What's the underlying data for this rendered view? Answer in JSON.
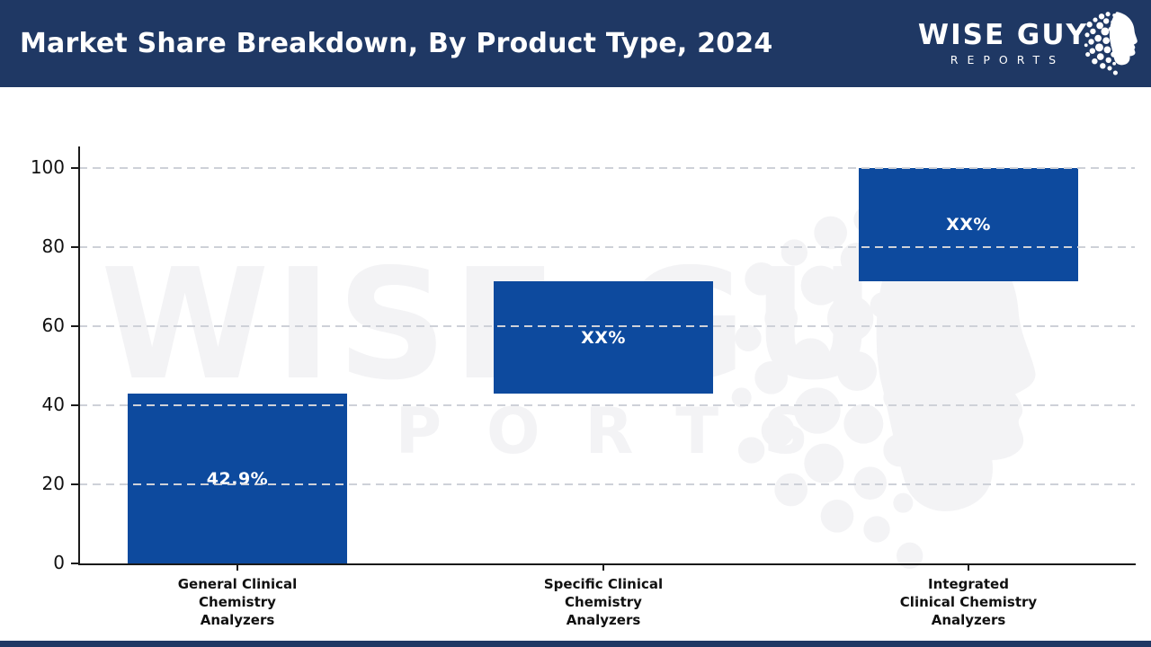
{
  "header": {
    "title": "Market Share Breakdown, By Product Type, 2024",
    "logo": {
      "line1": "WISE GUY",
      "line2": "REPORTS"
    }
  },
  "watermark": {
    "line1": "WISE GUY",
    "line2": "REPORTS"
  },
  "colors": {
    "header_bg": "#1f3864",
    "bar": "#0d4a9e",
    "grid": "#ced1d8",
    "axis": "#1a1a1a",
    "watermark": "#f3f3f5",
    "title_text": "#ffffff",
    "bar_label_text": "#ffffff"
  },
  "chart_data": {
    "type": "bar",
    "variant": "waterfall",
    "title": "Market Share Breakdown, By Product Type, 2024",
    "categories": [
      [
        "General Clinical",
        "Chemistry",
        "Analyzers"
      ],
      [
        "Specific Clinical",
        "Chemistry",
        "Analyzers"
      ],
      [
        "Integrated",
        "Clinical Chemistry",
        "Analyzers"
      ]
    ],
    "segments": [
      {
        "category": "General Clinical Chemistry Analyzers",
        "start": 0,
        "end": 42.9,
        "label": "42.9%"
      },
      {
        "category": "Specific Clinical Chemistry Analyzers",
        "start": 42.9,
        "end": 71.4,
        "label": "XX%"
      },
      {
        "category": "Integrated Clinical Chemistry Analyzers",
        "start": 71.4,
        "end": 100,
        "label": "XX%"
      }
    ],
    "xlabel": "",
    "ylabel": "",
    "ylim": [
      0,
      100
    ],
    "yticks": [
      0,
      20,
      40,
      60,
      80,
      100
    ],
    "grid": "horizontal-dashed",
    "legend": "none",
    "bar_color": "#0d4a9e"
  }
}
